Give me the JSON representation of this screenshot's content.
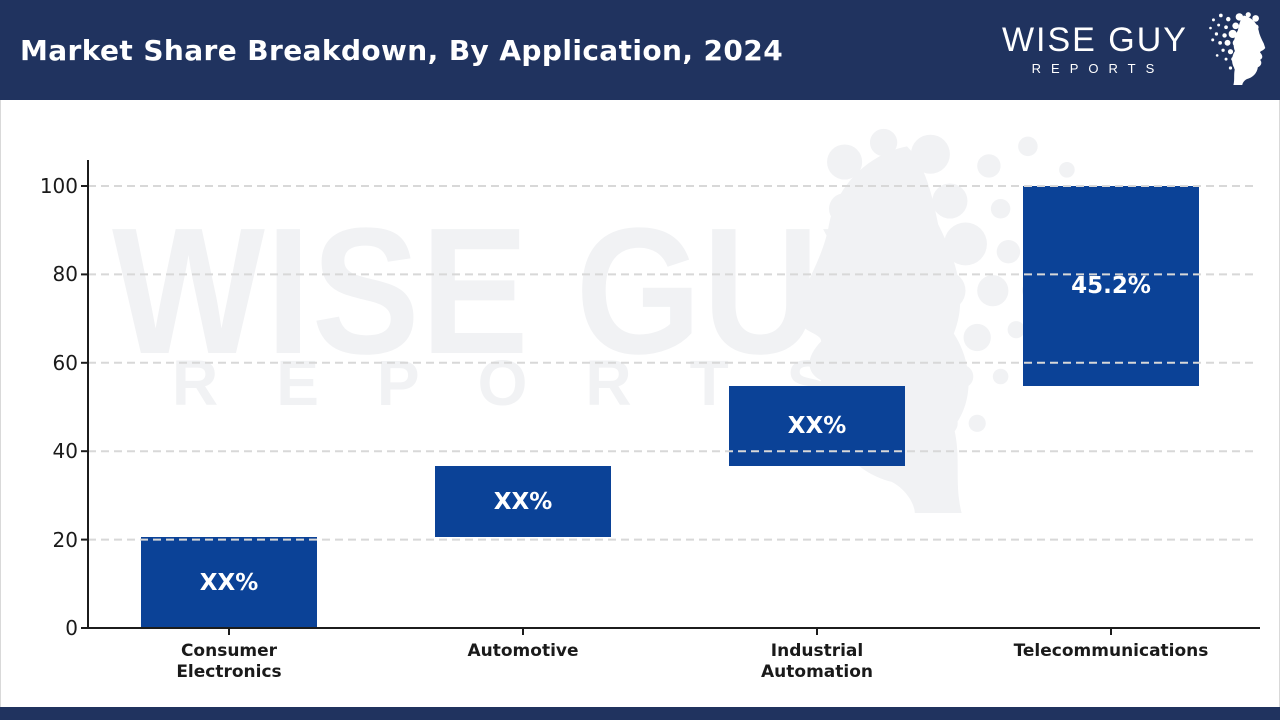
{
  "header": {
    "title": "Market Share Breakdown, By Application, 2024",
    "logo": {
      "wordmark": "WISE GUY",
      "subtitle": "REPORTS"
    }
  },
  "watermark": {
    "line1": "WISE GUY",
    "line2": "REPORTS"
  },
  "chart_data": {
    "type": "bar",
    "subtype": "waterfall",
    "title": "Market Share Breakdown, By Application, 2024",
    "categories": [
      "Consumer Electronics",
      "Automotive",
      "Industrial Automation",
      "Telecommunications"
    ],
    "bars": [
      {
        "category": "Consumer Electronics",
        "start": 0,
        "end": 20.5,
        "label": "XX%"
      },
      {
        "category": "Automotive",
        "start": 20.5,
        "end": 36.6,
        "label": "XX%"
      },
      {
        "category": "Industrial Automation",
        "start": 36.6,
        "end": 54.8,
        "label": "XX%"
      },
      {
        "category": "Telecommunications",
        "start": 54.8,
        "end": 100,
        "label": "45.2%"
      }
    ],
    "yticks": [
      0,
      20,
      40,
      60,
      80,
      100
    ],
    "ylim": [
      0,
      106
    ],
    "grid": "horizontal-dashed",
    "legend": false,
    "xlabel": "",
    "ylabel": ""
  },
  "colors": {
    "header_bg": "#20335f",
    "footer_bg": "#20335f",
    "bar": "#0b4297",
    "bar_label": "#ffffff",
    "gridline": "#d8d8d8",
    "axis": "#1c1c1c",
    "tick_label": "#1a1a1a",
    "watermark": "#f1f2f4"
  }
}
